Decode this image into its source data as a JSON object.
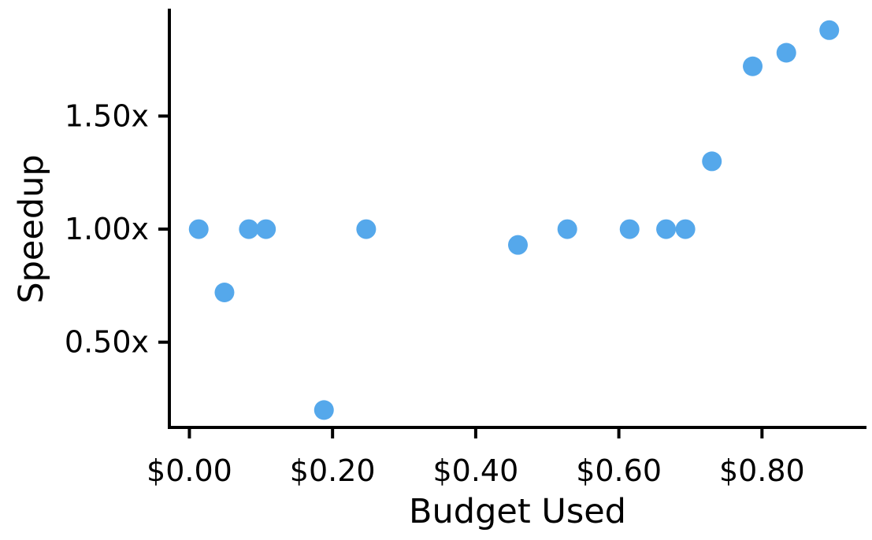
{
  "chart_data": {
    "type": "scatter",
    "xlabel": "Budget Used",
    "ylabel": "Speedup",
    "xlim": [
      -0.028,
      0.946
    ],
    "ylim": [
      0.123,
      1.968
    ],
    "grid": false,
    "x_ticks": [
      {
        "v": 0.0,
        "label": "$0.00"
      },
      {
        "v": 0.2,
        "label": "$0.20"
      },
      {
        "v": 0.4,
        "label": "$0.40"
      },
      {
        "v": 0.6,
        "label": "$0.60"
      },
      {
        "v": 0.8,
        "label": "$0.80"
      }
    ],
    "y_ticks": [
      {
        "v": 0.5,
        "label": "0.50x"
      },
      {
        "v": 1.0,
        "label": "1.00x"
      },
      {
        "v": 1.5,
        "label": "1.50x"
      }
    ],
    "marker": {
      "color": "#55A8EB",
      "radius_px": 12.5
    },
    "axis_color": "#000000",
    "points": [
      {
        "x": 0.013,
        "y": 1.0
      },
      {
        "x": 0.049,
        "y": 0.72
      },
      {
        "x": 0.083,
        "y": 1.0
      },
      {
        "x": 0.107,
        "y": 1.0
      },
      {
        "x": 0.188,
        "y": 0.2
      },
      {
        "x": 0.247,
        "y": 1.0
      },
      {
        "x": 0.459,
        "y": 0.93
      },
      {
        "x": 0.528,
        "y": 1.0
      },
      {
        "x": 0.615,
        "y": 1.0
      },
      {
        "x": 0.666,
        "y": 1.0
      },
      {
        "x": 0.693,
        "y": 1.0
      },
      {
        "x": 0.73,
        "y": 1.3
      },
      {
        "x": 0.787,
        "y": 1.72
      },
      {
        "x": 0.834,
        "y": 1.78
      },
      {
        "x": 0.894,
        "y": 1.88
      }
    ]
  }
}
